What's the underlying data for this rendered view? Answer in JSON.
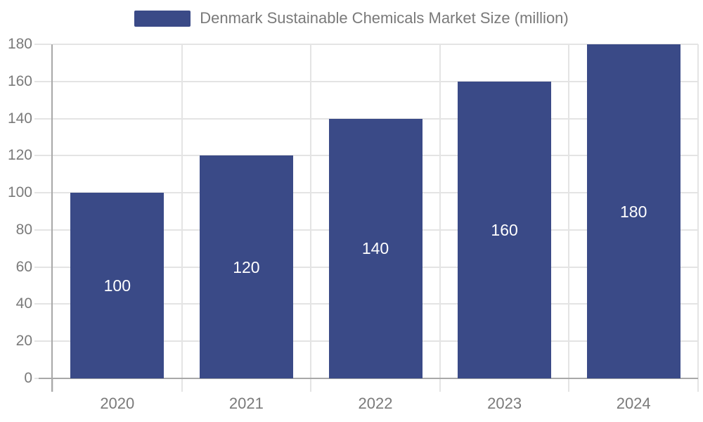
{
  "chart_data": {
    "type": "bar",
    "title": "Denmark Sustainable Chemicals Market Size (million)",
    "categories": [
      "2020",
      "2021",
      "2022",
      "2023",
      "2024"
    ],
    "values": [
      100,
      120,
      140,
      160,
      180
    ],
    "xlabel": "",
    "ylabel": "",
    "ylim": [
      0,
      180
    ],
    "ytick_interval": 20,
    "yticks": [
      0,
      20,
      40,
      60,
      80,
      100,
      120,
      140,
      160,
      180
    ],
    "bar_color": "#3A4A87",
    "bar_label_color": "#ffffff",
    "axis_text_color": "#7a7a7a",
    "axis_line_color": "#a8a8a8",
    "gridline_color": "#e4e4e4",
    "background_color": "#ffffff",
    "grid": true,
    "legend_position": "top-center",
    "bar_value_label_position": "center-inside"
  }
}
